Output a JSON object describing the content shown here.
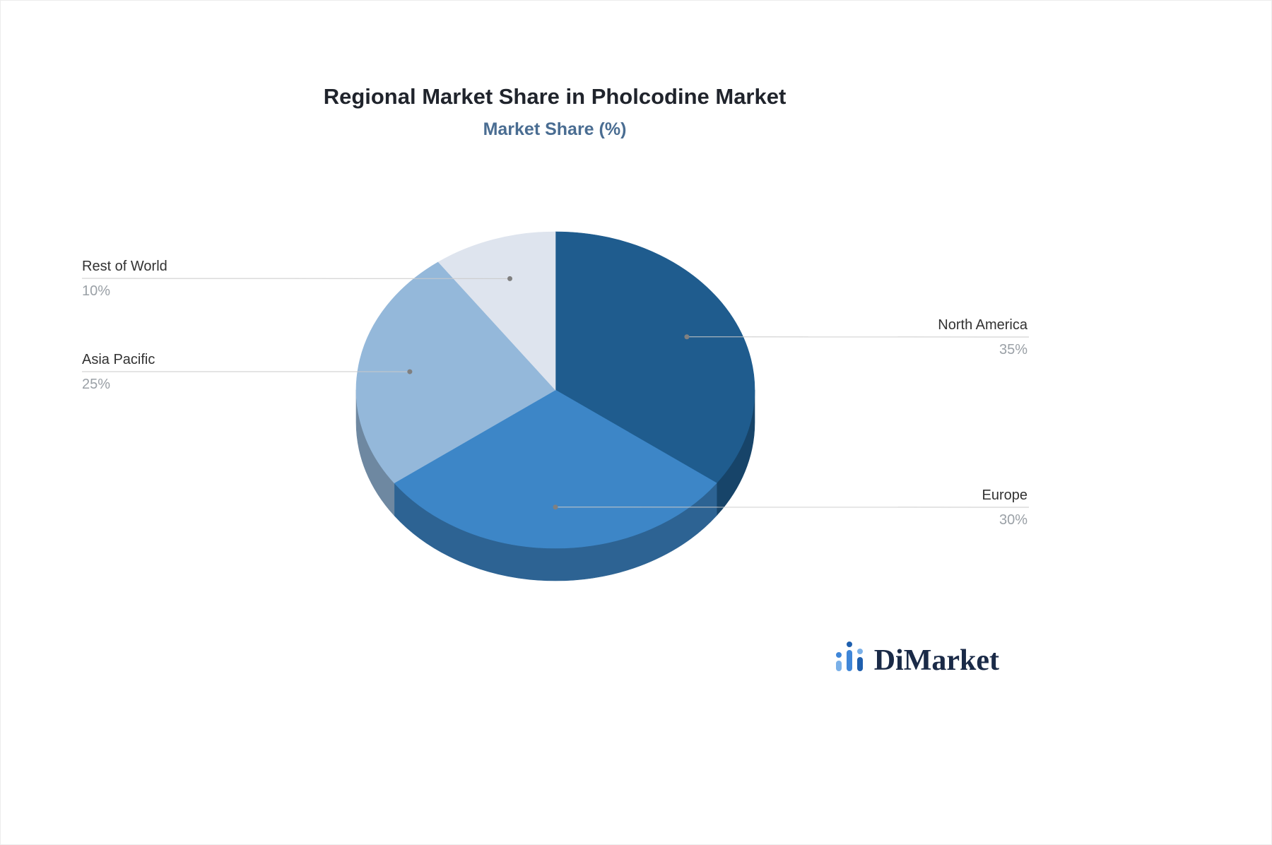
{
  "chart": {
    "title": "Regional Market Share in Pholcodine Market",
    "subtitle": "Market Share (%)"
  },
  "branding": {
    "logo_text": "DiMarket"
  },
  "chart_data": {
    "type": "pie",
    "style": "3d",
    "title": "Regional Market Share in Pholcodine Market",
    "subtitle": "Market Share (%)",
    "unit": "%",
    "categories": [
      "North America",
      "Europe",
      "Asia Pacific",
      "Rest of World"
    ],
    "values": [
      35,
      30,
      25,
      10
    ],
    "labels": [
      "35%",
      "30%",
      "25%",
      "10%"
    ],
    "colors": [
      "#1f5c8e",
      "#3d86c7",
      "#94b8da",
      "#dee4ee"
    ],
    "start_angle_deg": 0,
    "direction": "clockwise",
    "legend": "none",
    "label_position": "outside-leader-lines",
    "connector_color": "#c9c9c9",
    "connector_dot_color": "#808080",
    "category_label_color": "#323232",
    "value_label_color": "#9aa0a6"
  }
}
